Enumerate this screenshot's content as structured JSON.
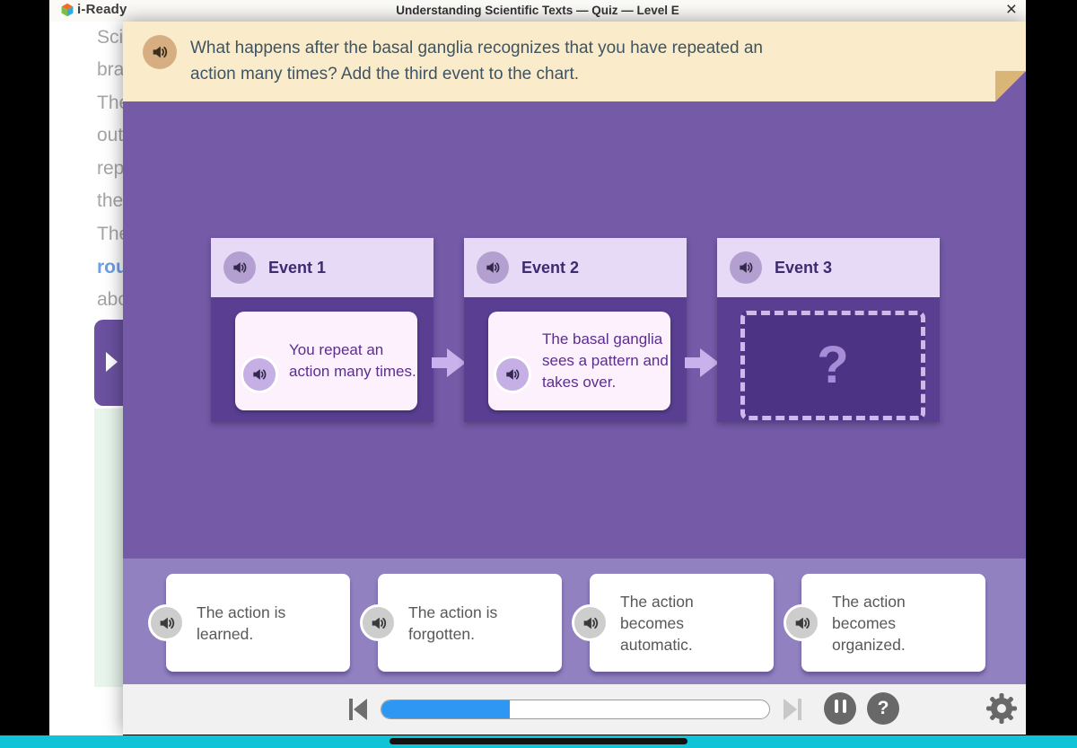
{
  "window": {
    "brand": "i-Ready",
    "title": "Understanding Scientific Texts — Quiz — Level E",
    "close": "×"
  },
  "passage_fragments": [
    "Sci",
    "bra",
    "The",
    "out",
    "rep",
    "the",
    "The",
    "rou",
    "abo"
  ],
  "question": {
    "text": "What happens after the basal ganglia recognizes that you have repeated an action many times? Add the third event to the chart."
  },
  "chart": {
    "events": [
      {
        "label": "Event 1",
        "text": "You repeat an action many times."
      },
      {
        "label": "Event 2",
        "text": "The basal ganglia sees a pattern and takes over."
      },
      {
        "label": "Event 3",
        "placeholder": "?"
      }
    ]
  },
  "choices": [
    "The action is learned.",
    "The action is forgotten.",
    "The action becomes automatic.",
    "The action becomes organized."
  ],
  "toolbar": {
    "progress_percent": 33,
    "help_label": "?"
  },
  "icons": {
    "audio": "speaker-icon",
    "expand": "play-triangle-icon",
    "previous": "skip-back-icon",
    "next": "skip-forward-icon",
    "pause": "pause-icon",
    "help": "question-icon",
    "settings": "gear-icon",
    "close": "close-icon"
  },
  "colors": {
    "panel_purple": "#745aa7",
    "event_body_purple": "#593e92",
    "tray_purple": "#9181c1",
    "banner_cream": "#faecca",
    "progress_blue": "#2e96f3",
    "footer_cyan": "#10c4d8"
  }
}
